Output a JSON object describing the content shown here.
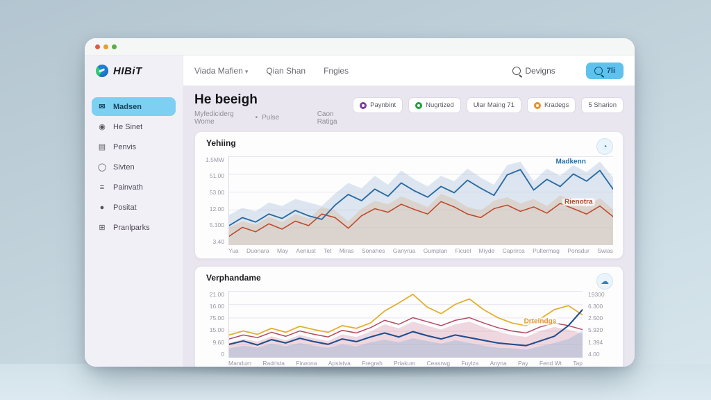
{
  "window": {
    "traffic_light_colors": [
      "#e05a4e",
      "#e0a030",
      "#58b13e"
    ]
  },
  "brand": {
    "name": "HIBiT",
    "accent": "#1f7fd4",
    "accent2": "#2ecc71"
  },
  "topnav": {
    "items": [
      {
        "label": "Viada Mafien",
        "has_dropdown": true
      },
      {
        "label": "Qian Shan",
        "has_dropdown": false
      },
      {
        "label": "Fngies",
        "has_dropdown": false
      }
    ],
    "search_label": "Devigns",
    "search_button_label": "7li",
    "search_button_color": "#5fc2ee"
  },
  "sidebar": {
    "active_bg": "#7ed0f2",
    "items": [
      {
        "label": "Madsen",
        "icon": "mail-icon",
        "active": true
      },
      {
        "label": "He Sinet",
        "icon": "pin-icon",
        "active": false
      },
      {
        "label": "Penvis",
        "icon": "file-icon",
        "active": false
      },
      {
        "label": "Sivten",
        "icon": "circle-icon",
        "active": false
      },
      {
        "label": "Painvath",
        "icon": "stack-icon",
        "active": false
      },
      {
        "label": "Positat",
        "icon": "disc-icon",
        "active": false
      },
      {
        "label": "Pranlparks",
        "icon": "grid-icon",
        "active": false
      }
    ]
  },
  "page": {
    "title": "He beeigh",
    "subtitle": "Myfediciderg Wome",
    "subtitle_sep": "•",
    "subtitle2": "Pulse",
    "subtitle3": "Caon Ratiga"
  },
  "chips": [
    {
      "label": "Paynbint",
      "dot_color": "#7b3fa0"
    },
    {
      "label": "Nugrtized",
      "dot_color": "#22a23c"
    },
    {
      "label": "Ular Maing 71",
      "dot_color": null
    },
    {
      "label": "Kradegs",
      "dot_color": "#e8912d"
    },
    {
      "label": "5 Sharion",
      "dot_color": null
    }
  ],
  "chart_data": [
    {
      "type": "line",
      "title": "Yehiing",
      "corner_icon": "pie-icon",
      "grid": true,
      "value_scale": "relative 0-100 (estimated from pixels; axis text is decorative pseudo-text)",
      "y_ticks": [
        "1.5MW",
        "51.00",
        "53.00",
        "12.00",
        "5.100",
        "3.40"
      ],
      "categories": [
        "Yua",
        "Duonara",
        "May",
        "Aeniust",
        "Tet",
        "Miras",
        "Sonahes",
        "Ganyrua",
        "Gumplan",
        "Ficuel",
        "Miyde",
        "Caprirca",
        "Pultermag",
        "Ponsdur",
        "Swias"
      ],
      "series": [
        {
          "name": "blue-band-area",
          "area": true,
          "fill": "rgba(150,180,210,0.30)",
          "values": [
            34,
            42,
            38,
            48,
            44,
            52,
            48,
            44,
            58,
            70,
            64,
            78,
            68,
            84,
            74,
            66,
            78,
            72,
            86,
            76,
            68,
            90,
            94,
            72,
            86,
            78,
            90,
            82,
            94,
            76
          ]
        },
        {
          "name": "tan-band-area",
          "area": true,
          "fill": "rgba(215,185,150,0.38)",
          "values": [
            20,
            27,
            23,
            32,
            26,
            35,
            30,
            43,
            39,
            27,
            41,
            50,
            46,
            55,
            49,
            43,
            58,
            52,
            43,
            39,
            50,
            54,
            47,
            52,
            44,
            56,
            50,
            43,
            53,
            40
          ]
        },
        {
          "name": "Rienotra",
          "color": "#bf4a2e",
          "width": 1.6,
          "values": [
            10,
            20,
            15,
            24,
            18,
            27,
            22,
            35,
            31,
            19,
            33,
            41,
            37,
            46,
            40,
            35,
            49,
            43,
            35,
            31,
            41,
            45,
            38,
            43,
            36,
            47,
            41,
            35,
            44,
            32
          ]
        },
        {
          "name": "Madkenn",
          "color": "#2b6ca3",
          "width": 1.9,
          "values": [
            22,
            31,
            26,
            35,
            30,
            39,
            33,
            29,
            45,
            57,
            50,
            63,
            55,
            70,
            61,
            54,
            66,
            59,
            73,
            64,
            56,
            79,
            85,
            62,
            74,
            66,
            80,
            72,
            84,
            63
          ]
        }
      ],
      "labels": [
        {
          "text": "Madkenn",
          "color": "#2471ab",
          "x": 89,
          "y": 6
        },
        {
          "text": "Rienotra",
          "color": "#b8472e",
          "x": 91,
          "y": 52
        }
      ],
      "legend_position": "in-plot right"
    },
    {
      "type": "line",
      "title": "Verphandame",
      "corner_icon": "cloud-icon",
      "grid": true,
      "value_scale": "relative 0-100 (estimated from pixels; axis text is decorative pseudo-text)",
      "y_ticks_left": [
        "21.00",
        "16.00",
        "75.00",
        "15.00",
        "9.60",
        "0"
      ],
      "y_ticks_right": [
        "19300",
        "6.300",
        "2.500",
        "5.920",
        "1.394",
        "4.00"
      ],
      "categories": [
        "Mandum",
        "Radrista",
        "Firwona",
        "Apsistva",
        "Fregrah",
        "Priakum",
        "Ceasrwg",
        "Fuylza",
        "Anyna",
        "Pay",
        "Fend Wt",
        "Tap"
      ],
      "series": [
        {
          "name": "pink-area",
          "area": true,
          "fill": "rgba(205,120,145,0.28)",
          "values": [
            22,
            28,
            24,
            32,
            26,
            34,
            29,
            25,
            35,
            31,
            39,
            50,
            44,
            54,
            48,
            42,
            50,
            54,
            46,
            39,
            34,
            31,
            40,
            46,
            42,
            36
          ]
        },
        {
          "name": "lightblue-area",
          "area": true,
          "fill": "rgba(140,175,210,0.38)",
          "values": [
            14,
            18,
            15,
            21,
            17,
            22,
            18,
            15,
            20,
            17,
            23,
            27,
            23,
            29,
            25,
            21,
            26,
            22,
            18,
            15,
            14,
            12,
            17,
            22,
            28,
            40
          ]
        },
        {
          "name": "yellow-line",
          "color": "#e2b02c",
          "width": 1.8,
          "values": [
            34,
            40,
            35,
            44,
            38,
            47,
            42,
            38,
            48,
            44,
            52,
            70,
            82,
            95,
            76,
            66,
            80,
            88,
            72,
            60,
            52,
            48,
            58,
            72,
            78,
            64
          ]
        },
        {
          "name": "magenta-line",
          "color": "#b44a62",
          "width": 1.5,
          "values": [
            28,
            34,
            30,
            38,
            32,
            40,
            35,
            31,
            41,
            37,
            45,
            56,
            50,
            60,
            54,
            48,
            56,
            60,
            52,
            45,
            40,
            37,
            46,
            52,
            48,
            42
          ]
        },
        {
          "name": "darkblue-line",
          "color": "#1f4f8f",
          "width": 2.1,
          "values": [
            20,
            25,
            19,
            27,
            22,
            29,
            24,
            20,
            28,
            24,
            31,
            37,
            31,
            39,
            33,
            28,
            34,
            30,
            26,
            22,
            20,
            18,
            25,
            32,
            48,
            72
          ]
        }
      ],
      "labels": [
        {
          "text": "Drteindgs",
          "color": "#e0952f",
          "x": 88,
          "y": 46
        }
      ],
      "legend_position": "none"
    }
  ]
}
